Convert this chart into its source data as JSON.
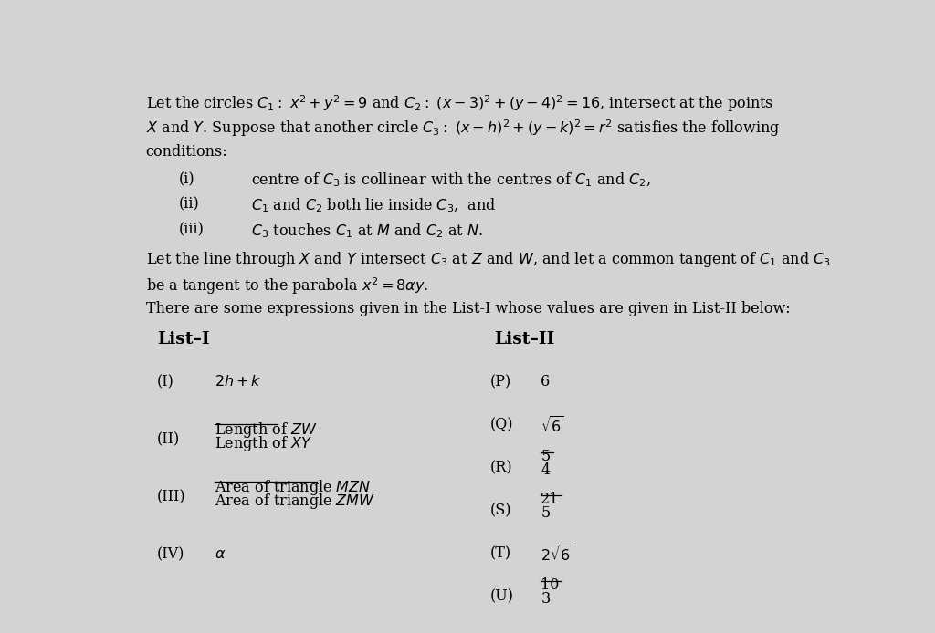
{
  "bg_color": "#d3d3d3",
  "text_color": "#000000",
  "title_text": [
    "Let the circles $C_1:\\  x^2+y^2=9$ and $C_2:\\ (x-3)^2+(y-4)^2=16$, intersect at the points",
    "$X$ and $Y$. Suppose that another circle $C_3:\\ (x-h)^2+(y-k)^2=r^2$ satisfies the following",
    "conditions:"
  ],
  "conditions": [
    [
      "(i)",
      "centre of $C_3$ is collinear with the centres of $C_1$ and $C_2$,"
    ],
    [
      "(ii)",
      "$C_1$ and $C_2$ both lie inside $C_3$,  and"
    ],
    [
      "(iii)",
      "$C_3$ touches $C_1$ at $M$ and $C_2$ at $N$."
    ]
  ],
  "extra_text": [
    "Let the line through $X$ and $Y$ intersect $C_3$ at $Z$ and $W$, and let a common tangent of $C_1$ and $C_3$",
    "be a tangent to the parabola $x^2=8\\alpha y$.",
    "There are some expressions given in the List-I whose values are given in List-II below:"
  ],
  "list1_header": "List–I",
  "list2_header": "List–II",
  "list1_items": [
    [
      "(I)",
      "$2h+k$"
    ],
    [
      "(II)",
      "frac:Length of $ZW$:Length of $XY$"
    ],
    [
      "(III)",
      "frac:Area of triangle $MZN$:Area of triangle $ZMW$"
    ],
    [
      "(IV)",
      "$\\alpha$"
    ]
  ],
  "list2_items": [
    [
      "(P)",
      "6"
    ],
    [
      "(Q)",
      "$\\sqrt{6}$"
    ],
    [
      "(R)",
      "frac:5:4"
    ],
    [
      "(S)",
      "frac:21:5"
    ],
    [
      "(T)",
      "$2\\sqrt{6}$"
    ],
    [
      "(U)",
      "frac:10:3"
    ]
  ]
}
